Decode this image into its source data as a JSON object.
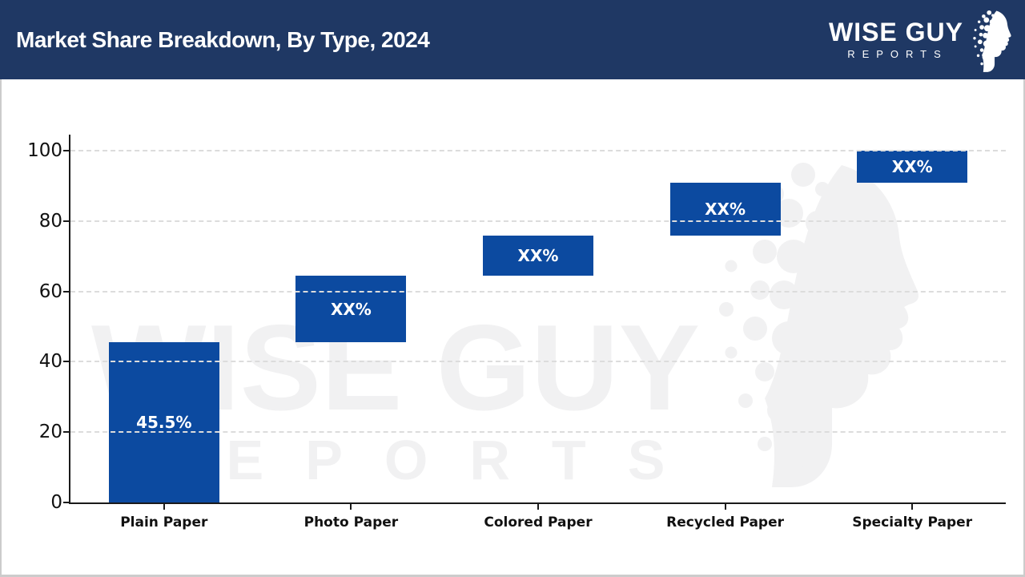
{
  "header": {
    "title": "Market Share Breakdown, By Type, 2024",
    "logo": {
      "brand": "WISE GUY",
      "sub": "REPORTS",
      "face_icon": "dotted-head-profile"
    }
  },
  "watermark": {
    "line1": "WISE GUY",
    "line2": "REPORTS",
    "face_icon": "dotted-head-profile"
  },
  "colors": {
    "header_bg": "#1f3864",
    "bar_blue": "#0c4aa0",
    "grid": "#dcdcdc",
    "axis": "#1a1a1a",
    "watermark": "#f1f1f2",
    "bar_label_text": "#ffffff",
    "frame_border": "#cccccc"
  },
  "chart_data": {
    "type": "bar",
    "subtype": "waterfall",
    "title": "Market Share Breakdown, By Type, 2024",
    "xlabel": "",
    "ylabel": "",
    "categories": [
      "Plain Paper",
      "Photo Paper",
      "Colored Paper",
      "Recycled Paper",
      "Specialty Paper"
    ],
    "bars": [
      {
        "category": "Plain Paper",
        "start": 0,
        "end": 45.5,
        "label": "45.5%"
      },
      {
        "category": "Photo Paper",
        "start": 45.5,
        "end": 64.5,
        "label": "XX%"
      },
      {
        "category": "Colored Paper",
        "start": 64.5,
        "end": 75.8,
        "label": "XX%"
      },
      {
        "category": "Recycled Paper",
        "start": 75.8,
        "end": 91.0,
        "label": "XX%"
      },
      {
        "category": "Specialty Paper",
        "start": 91.0,
        "end": 100.0,
        "label": "XX%"
      }
    ],
    "yticks": [
      0,
      20,
      40,
      60,
      80,
      100
    ],
    "ylim": [
      0,
      104.6
    ],
    "grid": "horizontal-dashed",
    "legend": "none"
  }
}
